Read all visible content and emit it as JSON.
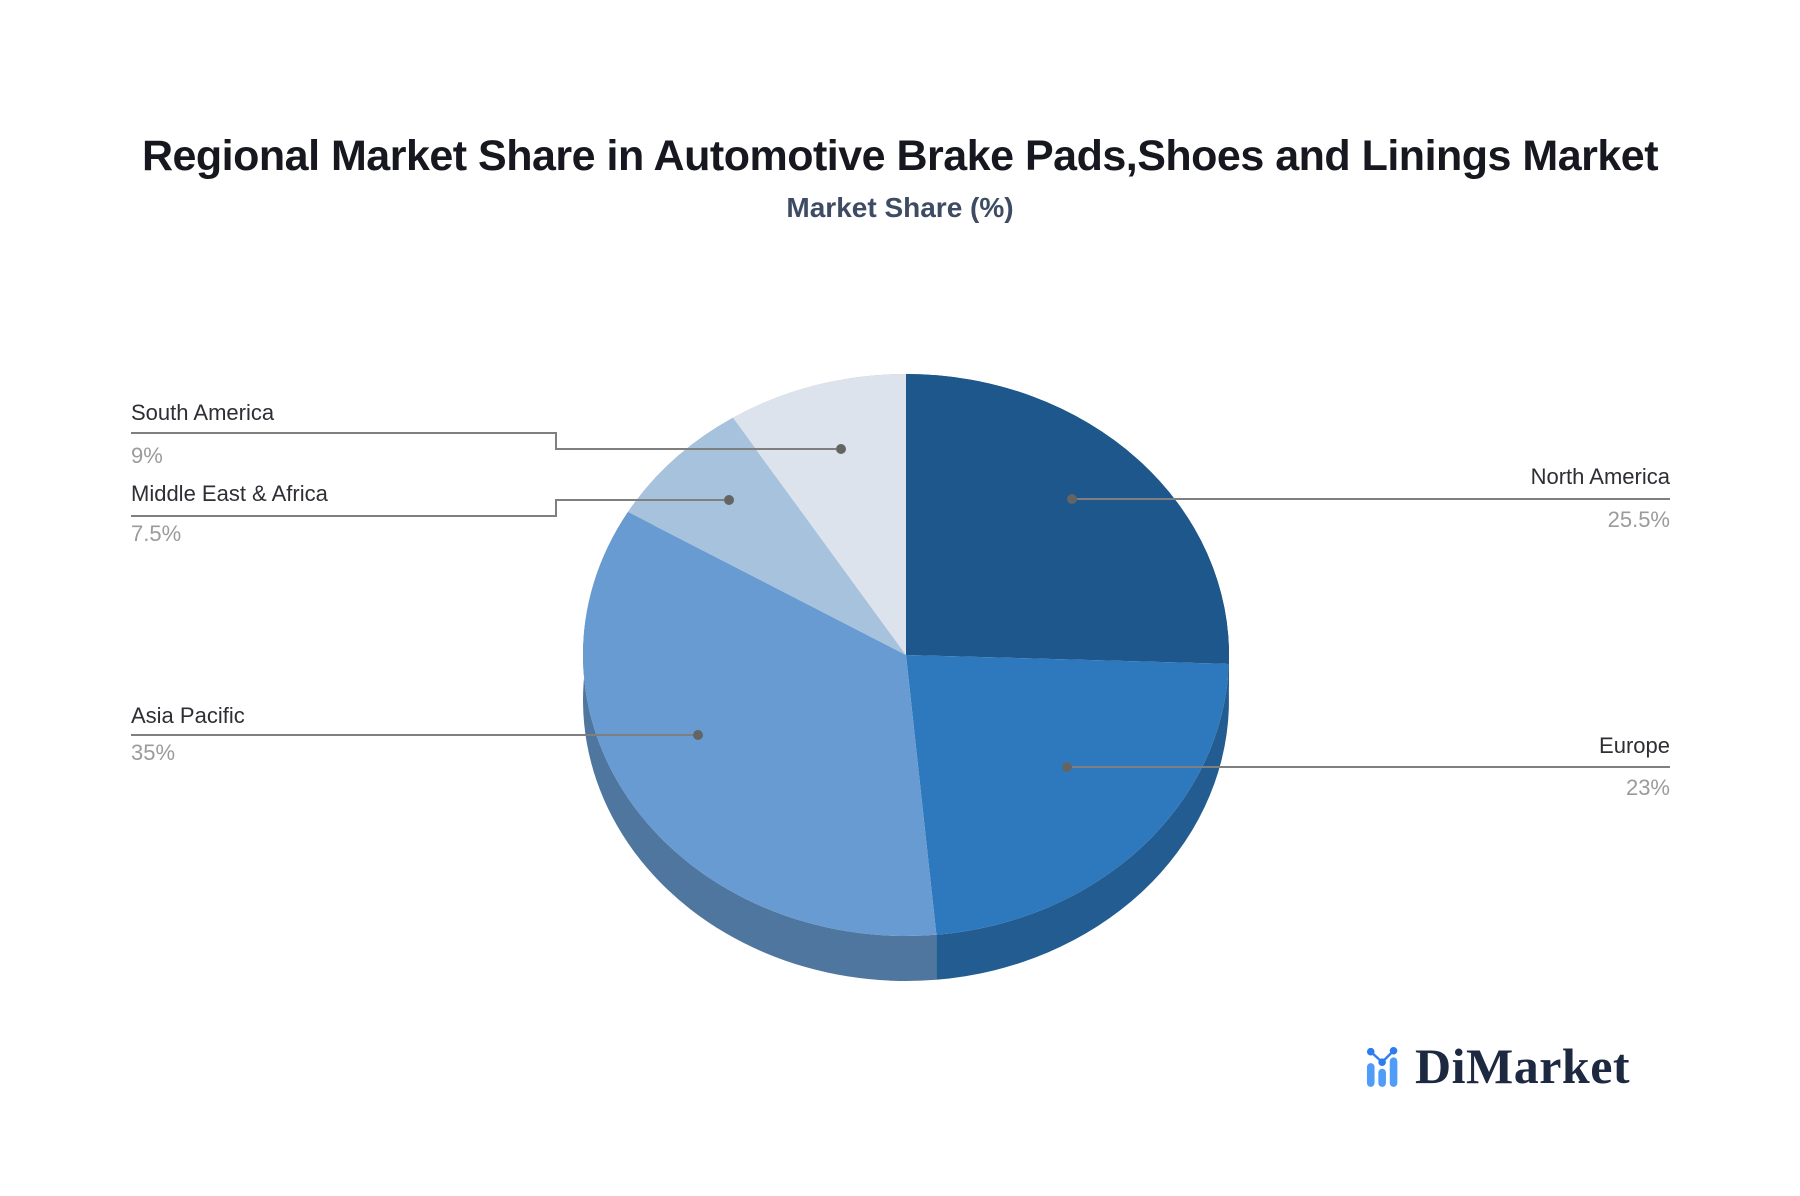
{
  "header": {
    "title": "Regional Market Share in Automotive Brake Pads,Shoes and Linings Market",
    "subtitle": "Market Share (%)"
  },
  "chart_data": {
    "type": "pie",
    "style": "3d",
    "title": "Regional Market Share in Automotive Brake Pads,Shoes and Linings Market",
    "subtitle": "Market Share (%)",
    "unit": "%",
    "start_angle_deg": 0,
    "direction": "clockwise",
    "side_darken": 0.76,
    "slices": [
      {
        "label": "North America",
        "value": 25.5,
        "value_label": "25.5%",
        "color": "#1D578B"
      },
      {
        "label": "Europe",
        "value": 23,
        "value_label": "23%",
        "color": "#2E79BD"
      },
      {
        "label": "Asia Pacific",
        "value": 35,
        "value_label": "35%",
        "color": "#689BD1"
      },
      {
        "label": "Middle East & Africa",
        "value": 7.5,
        "value_label": "7.5%",
        "color": "#A7C2DD"
      },
      {
        "label": "South America",
        "value": 9,
        "value_label": "9%",
        "color": "#DDE3EC"
      }
    ]
  },
  "branding": {
    "logo_text": "DiMarket",
    "logo_icon": "bar-line-chart-icon"
  },
  "colors": {
    "background": "#ffffff",
    "title_text": "#17171f",
    "subtitle_text": "#3e4c63",
    "label_text": "#2e2e35",
    "value_text": "#9b9b9b",
    "leader_line": "#7f7f7f",
    "leader_dot": "#646464",
    "logo_text": "#1c2940",
    "logo_bar": "#4f9df8",
    "logo_accent": "#2d7df0"
  }
}
